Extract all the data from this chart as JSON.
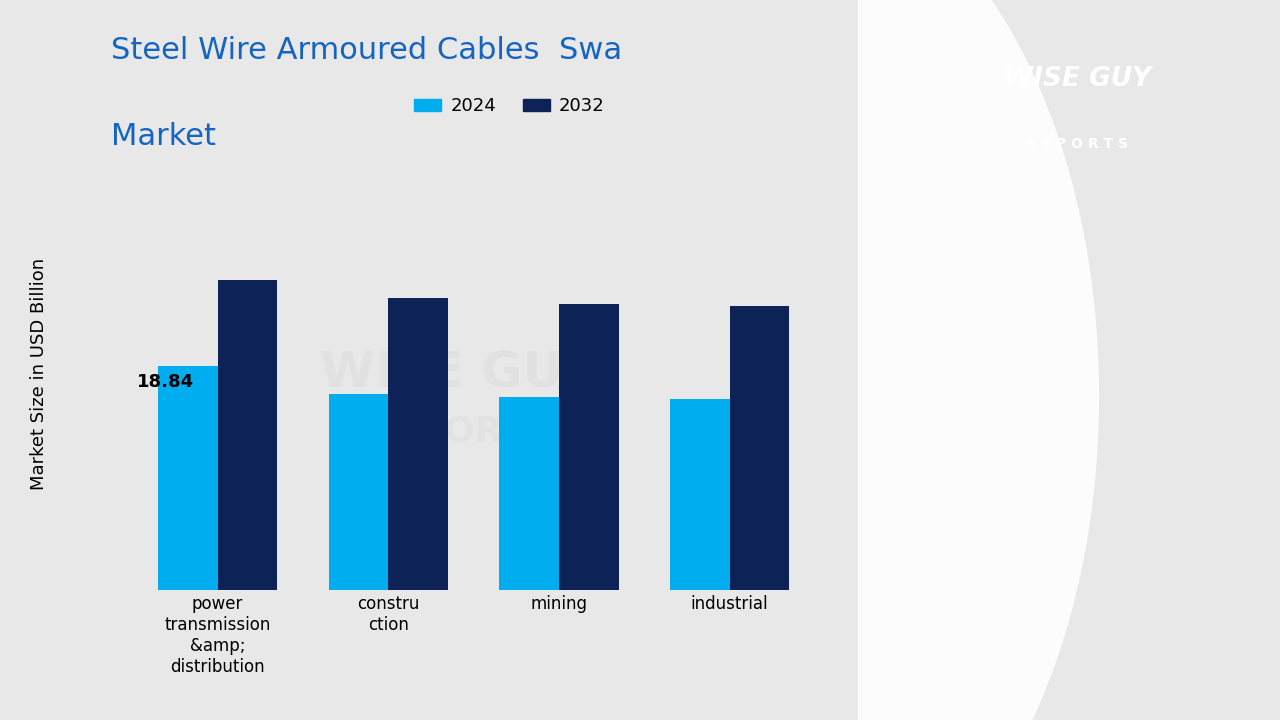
{
  "title_line1": "Steel Wire Armoured Cables  Swa",
  "title_line2": "Market",
  "ylabel": "Market Size in USD Billion",
  "categories": [
    "power\ntransmission\n&amp;\ndistribution",
    "constru\nction",
    "mining",
    "industrial"
  ],
  "values_2024": [
    18.84,
    16.5,
    16.2,
    16.0
  ],
  "values_2032": [
    26.0,
    24.5,
    24.0,
    23.8
  ],
  "color_2024": "#00AEEF",
  "color_2032": "#0D2257",
  "legend_labels": [
    "2024",
    "2032"
  ],
  "annotation_text": "18.84",
  "background_color": "#E8E8E8",
  "right_panel_color": "#0D2257",
  "title_color": "#1565C0",
  "bar_width": 0.35,
  "ylim": [
    0,
    35
  ],
  "title_fontsize": 22,
  "axis_label_fontsize": 13,
  "tick_fontsize": 12,
  "legend_fontsize": 13
}
